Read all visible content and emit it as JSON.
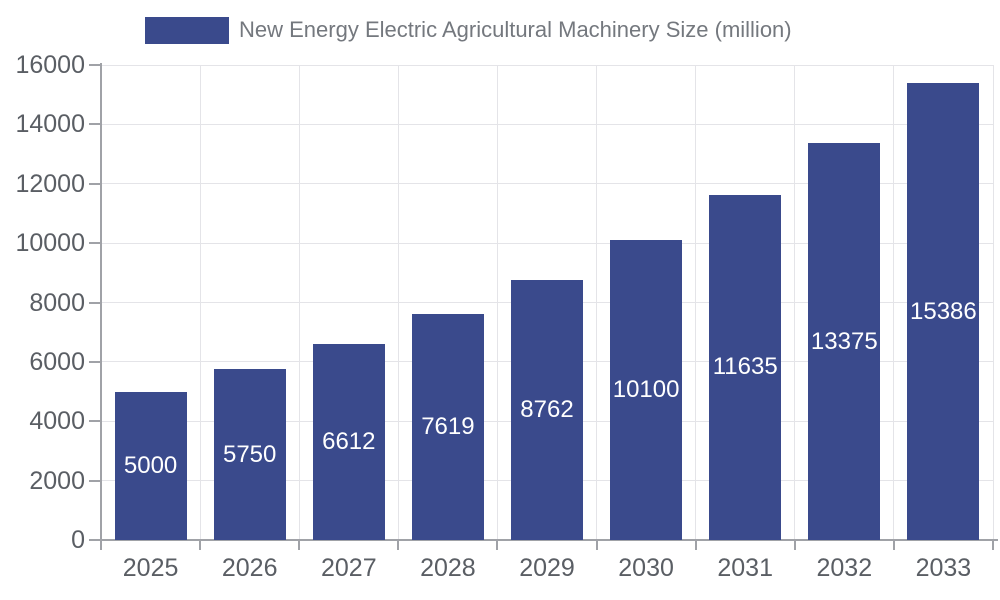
{
  "chart_data": {
    "type": "bar",
    "title": "",
    "xlabel": "",
    "ylabel": "",
    "categories": [
      "2025",
      "2026",
      "2027",
      "2028",
      "2029",
      "2030",
      "2031",
      "2032",
      "2033"
    ],
    "series": [
      {
        "name": "New Energy Electric Agricultural Machinery Size (million)",
        "color": "#3a4a8c",
        "values": [
          5000,
          5750,
          6612,
          7619,
          8762,
          10100,
          11635,
          13375,
          15386
        ]
      }
    ],
    "ylim": [
      0,
      16000
    ],
    "yticks": [
      0,
      2000,
      4000,
      6000,
      8000,
      10000,
      12000,
      14000,
      16000
    ],
    "grid": true,
    "value_labels": "inside-center",
    "legend_position": "top",
    "colors": {
      "bar": "#3a4a8c",
      "value_label": "#ffffff",
      "axis_label": "#5a5e64",
      "legend_text": "#74787e",
      "gridline": "#e4e4e8",
      "axis_line": "#a0a2a7",
      "background": "#ffffff"
    }
  }
}
